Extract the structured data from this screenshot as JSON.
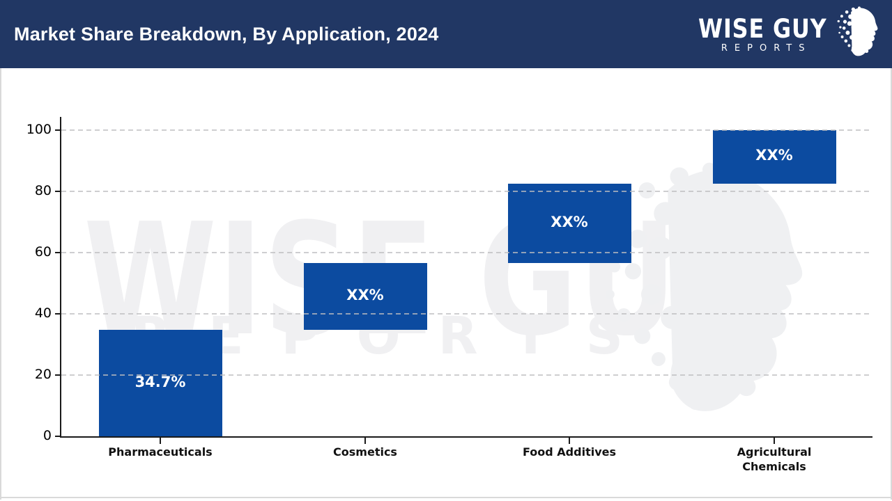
{
  "header": {
    "title": "Market Share Breakdown, By Application, 2024",
    "bg_color": "#213764",
    "logo": {
      "line1": "WISE GUY",
      "line2": "REPORTS"
    }
  },
  "watermark": {
    "line1": "WISE GUY",
    "line2": "REPORTS"
  },
  "chart_data": {
    "type": "bar",
    "subtype": "waterfall",
    "title": "Market Share Breakdown, By Application, 2024",
    "categories": [
      "Pharmaceuticals",
      "Cosmetics",
      "Food Additives",
      "Agricultural Chemicals"
    ],
    "segments": [
      {
        "category": "Pharmaceuticals",
        "label": "34.7%",
        "start": 0,
        "end": 34.7
      },
      {
        "category": "Cosmetics",
        "label": "XX%",
        "start": 34.7,
        "end": 56.5
      },
      {
        "category": "Food Additives",
        "label": "XX%",
        "start": 56.5,
        "end": 82.5
      },
      {
        "category": "Agricultural Chemicals",
        "label": "XX%",
        "start": 82.5,
        "end": 100
      }
    ],
    "bar_color": "#0c4ba0",
    "bar_label_color": "#ffffff",
    "yticks": [
      0,
      20,
      40,
      60,
      80,
      100
    ],
    "ylim": [
      0,
      100
    ],
    "xlabel": "",
    "ylabel": "",
    "grid": {
      "axis": "y",
      "style": "dashed",
      "color": "#d9d9d9"
    },
    "legend": "none"
  }
}
